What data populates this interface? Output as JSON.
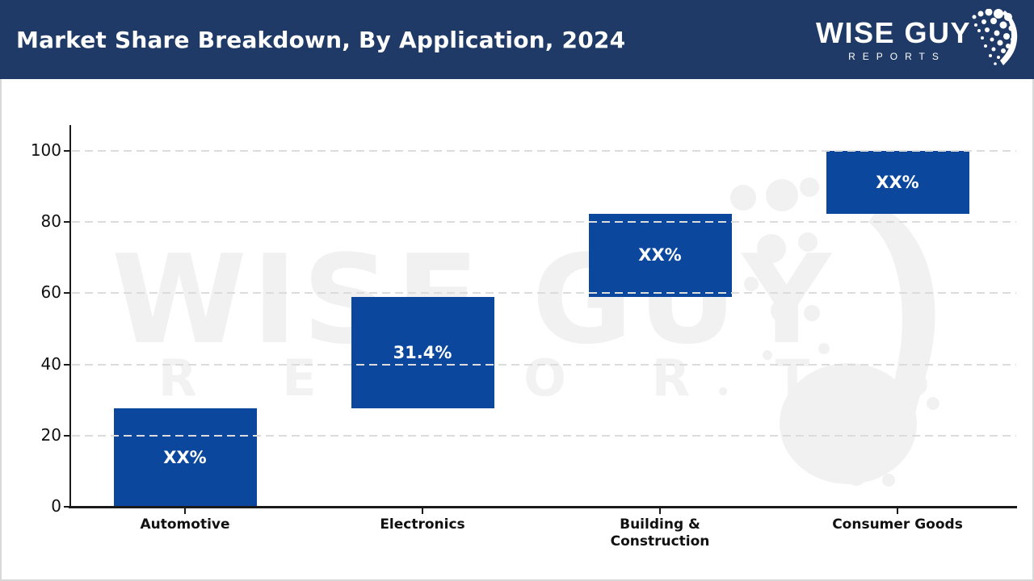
{
  "header": {
    "title": "Market Share Breakdown, By Application, 2024",
    "logo": {
      "line1": "WISE GUY",
      "line2": "REPORTS"
    }
  },
  "watermark": {
    "line1": "WISE GUY",
    "line2": "R E P O R T S"
  },
  "colors": {
    "header_bg": "#1f3a66",
    "bar": "#0b479d",
    "bar_label": "#ffffff",
    "gridline": "#dcdcdc",
    "axis": "#1a1a1a",
    "watermark": "#f1f1f1",
    "frame_border": "#d8d8d8"
  },
  "chart_data": {
    "type": "bar",
    "subtype": "waterfall-floating-bars",
    "title": "Market Share Breakdown, By Application, 2024",
    "categories": [
      "Automotive",
      "Electronics",
      "Building &\nConstruction",
      "Consumer Goods"
    ],
    "bars": [
      {
        "category": "Automotive",
        "base": 0,
        "top": 27.6,
        "label": "XX%"
      },
      {
        "category": "Electronics",
        "base": 27.6,
        "top": 59.0,
        "label": "31.4%"
      },
      {
        "category": "Building & Construction",
        "base": 59.0,
        "top": 82.4,
        "label": "XX%"
      },
      {
        "category": "Consumer Goods",
        "base": 82.4,
        "top": 100.0,
        "label": "XX%"
      }
    ],
    "xlabel": "",
    "ylabel": "",
    "ylim": [
      0,
      100
    ],
    "yticks": [
      0,
      20,
      40,
      60,
      80,
      100
    ],
    "grid": "dashed-horizontal",
    "legend": "none",
    "bar_color": "#0b479d",
    "label_color": "#ffffff"
  }
}
